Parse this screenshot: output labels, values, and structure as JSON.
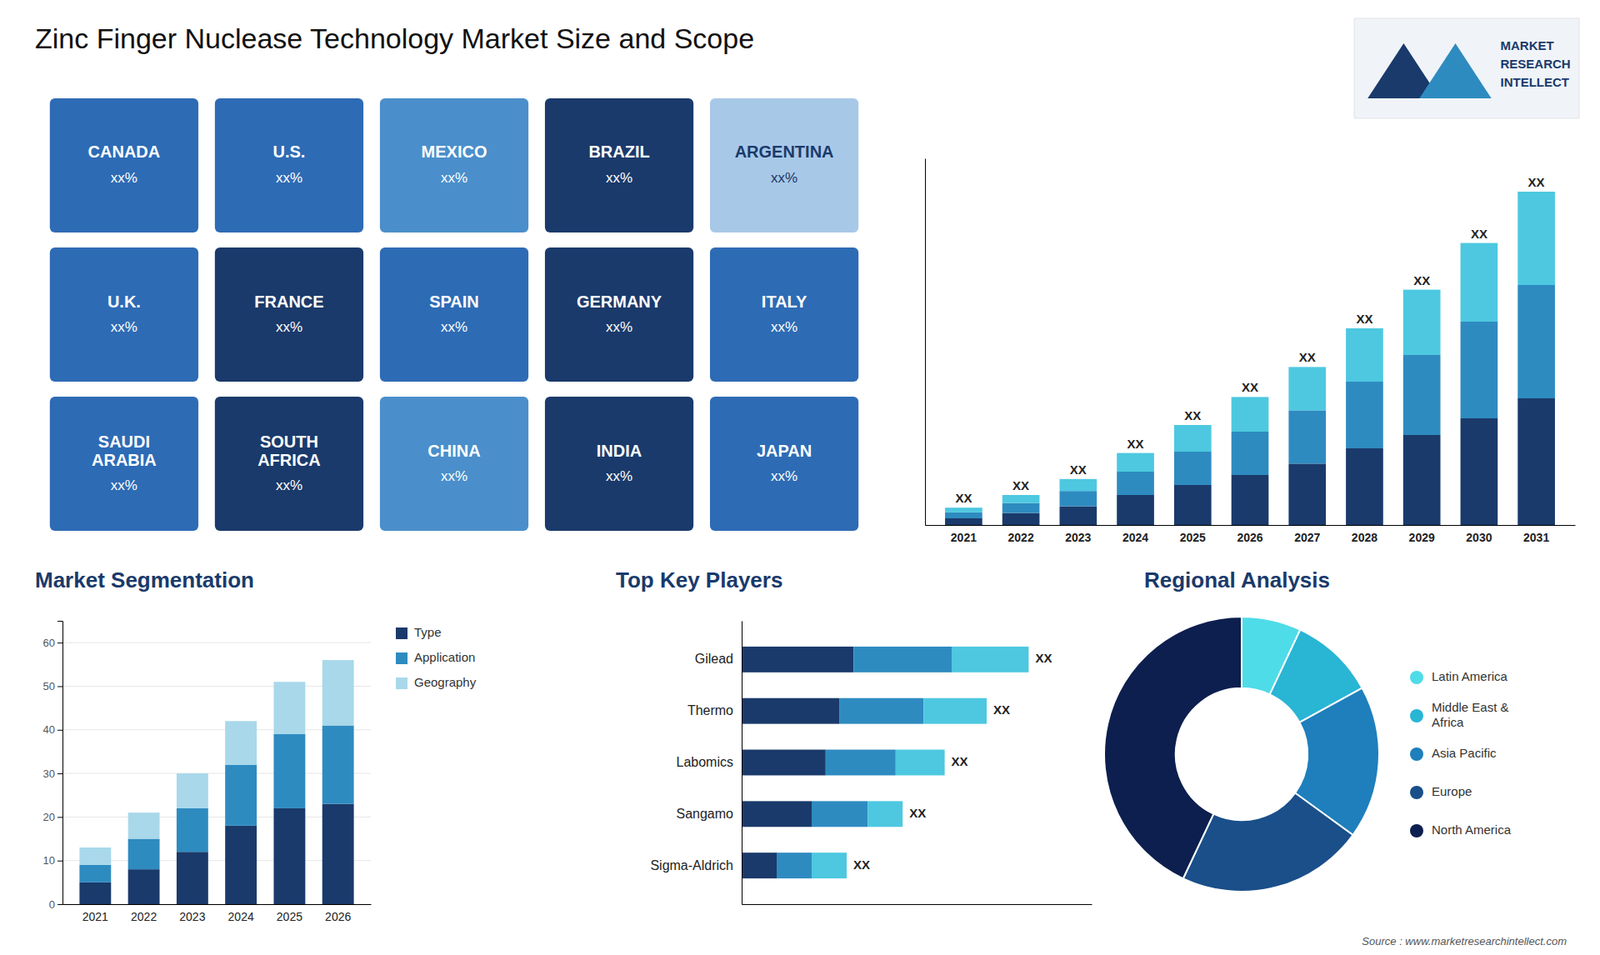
{
  "chart_data": [
    {
      "type": "map",
      "title": "Zinc Finger Nuclease Technology Market Size and Scope",
      "categories": [
        "CANADA",
        "U.S.",
        "MEXICO",
        "BRAZIL",
        "ARGENTINA",
        "U.K.",
        "FRANCE",
        "SPAIN",
        "GERMANY",
        "ITALY",
        "SAUDI\nARABIA",
        "SOUTH\nAFRICA",
        "CHINA",
        "INDIA",
        "JAPAN"
      ],
      "value_labels": [
        "xx%",
        "xx%",
        "xx%",
        "xx%",
        "xx%",
        "xx%",
        "xx%",
        "xx%",
        "xx%",
        "xx%",
        "xx%",
        "xx%",
        "xx%",
        "xx%",
        "xx%"
      ],
      "colors": [
        "#2e6bb5",
        "#2e6bb5",
        "#4a8fcb",
        "#1a3a6b",
        "#a8c8e8",
        "#2e6bb5",
        "#1a3a6b",
        "#2e6bb5",
        "#1a3a6b",
        "#2e6bb5",
        "#2e6bb5",
        "#1a3a6b",
        "#4a8fcb",
        "#1a3a6b",
        "#2e6bb5"
      ]
    },
    {
      "type": "bar",
      "stacked": true,
      "categories": [
        "2021",
        "2022",
        "2023",
        "2024",
        "2025",
        "2026",
        "2027",
        "2028",
        "2029",
        "2030",
        "2031"
      ],
      "series": [
        {
          "color": "#1a3a6b",
          "values": [
            1.0,
            1.8,
            2.8,
            4.5,
            6.0,
            7.5,
            9.2,
            11.5,
            13.5,
            16.0,
            19.0
          ]
        },
        {
          "color": "#2e8bc0",
          "values": [
            0.9,
            1.5,
            2.3,
            3.5,
            5.0,
            6.5,
            8.0,
            10.0,
            12.0,
            14.5,
            17.0
          ]
        },
        {
          "color": "#4dc8e0",
          "values": [
            0.7,
            1.2,
            1.8,
            2.8,
            4.0,
            5.2,
            6.5,
            8.0,
            9.8,
            11.8,
            14.0
          ],
          "value_labels": [
            "XX",
            "XX",
            "XX",
            "XX",
            "XX",
            "XX",
            "XX",
            "XX",
            "XX",
            "XX",
            "XX"
          ]
        }
      ],
      "ylim": [
        0,
        55
      ],
      "tick_labels": "x",
      "annotations": [
        "MARKET",
        "RESEARCH",
        "INTELLECT"
      ]
    },
    {
      "type": "bar",
      "title": "Market Segmentation",
      "stacked": true,
      "categories": [
        "2021",
        "2022",
        "2023",
        "2024",
        "2025",
        "2026"
      ],
      "series": [
        {
          "name": "Type",
          "color": "#1a3a6b",
          "values": [
            5,
            8,
            12,
            18,
            22,
            23
          ]
        },
        {
          "name": "Application",
          "color": "#2e8bc0",
          "values": [
            4,
            7,
            10,
            14,
            17,
            18
          ]
        },
        {
          "name": "Geography",
          "color": "#a8d8ea",
          "values": [
            4,
            6,
            8,
            10,
            12,
            15
          ]
        }
      ],
      "ylim": [
        0,
        65
      ],
      "yticks": [
        0,
        10,
        20,
        30,
        40,
        50,
        60
      ],
      "grid": true,
      "legend": "right"
    },
    {
      "type": "bar",
      "title": "Top Key Players",
      "orientation": "horizontal",
      "stacked": true,
      "categories": [
        "Gilead",
        "Thermo",
        "Labomics",
        "Sangamo",
        "Sigma-Aldrich"
      ],
      "series": [
        {
          "color": "#1a3a6b",
          "values": [
            0.32,
            0.28,
            0.24,
            0.2,
            0.1
          ]
        },
        {
          "color": "#2e8bc0",
          "values": [
            0.28,
            0.24,
            0.2,
            0.16,
            0.1
          ]
        },
        {
          "color": "#4dc8e0",
          "values": [
            0.22,
            0.18,
            0.14,
            0.1,
            0.1
          ],
          "value_labels": [
            "XX",
            "XX",
            "XX",
            "XX",
            "XX"
          ]
        }
      ],
      "xlim": [
        0,
        1.0
      ],
      "tick_labels": "y"
    },
    {
      "type": "donut",
      "title": "Regional Analysis",
      "categories": [
        "Latin America",
        "Middle East &\nAfrica",
        "Asia Pacific",
        "Europe",
        "North America"
      ],
      "values": [
        7,
        10,
        18,
        22,
        43
      ],
      "colors": [
        "#4edce8",
        "#29b5d4",
        "#1e7fbc",
        "#1a4f8a",
        "#0d1f4e"
      ],
      "legend": "right",
      "annotations": [
        "Source : www.marketresearchintellect.com"
      ]
    }
  ]
}
